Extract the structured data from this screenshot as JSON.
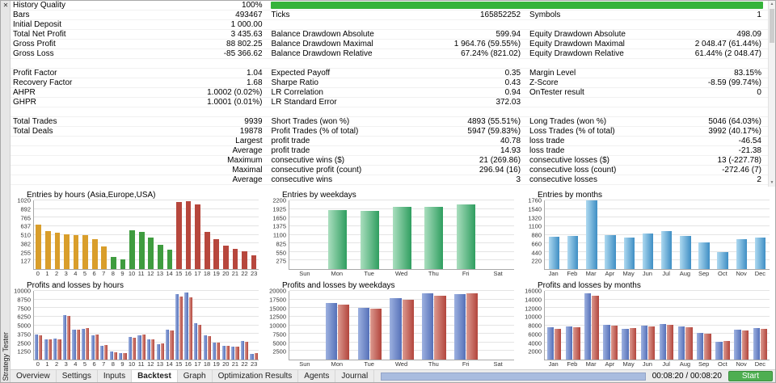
{
  "panel": {
    "name": "Strategy Tester",
    "close_icon": "✕",
    "scrollbar": {
      "up_icon": "▲",
      "down_icon": "▼"
    }
  },
  "colors": {
    "history_bar": "#35b33a",
    "progress": "#a9bcdf",
    "start_button": "#4eae51"
  },
  "stats": {
    "history_quality": {
      "label": "History Quality",
      "value": "100%"
    },
    "rows": [
      {
        "c": [
          {
            "l": "Bars",
            "v": "493467"
          },
          {
            "l": "Ticks",
            "v": "165852252"
          },
          {
            "l": "Symbols",
            "v": "1"
          }
        ]
      },
      {
        "c": [
          {
            "l": "Initial Deposit",
            "v": "1 000.00"
          },
          {
            "l": "",
            "v": ""
          },
          {
            "l": "",
            "v": ""
          }
        ]
      },
      {
        "c": [
          {
            "l": "Total Net Profit",
            "v": "3 435.63"
          },
          {
            "l": "Balance Drawdown Absolute",
            "v": "599.94"
          },
          {
            "l": "Equity Drawdown Absolute",
            "v": "498.09"
          }
        ]
      },
      {
        "c": [
          {
            "l": "Gross Profit",
            "v": "88 802.25"
          },
          {
            "l": "Balance Drawdown Maximal",
            "v": "1 964.76 (59.55%)"
          },
          {
            "l": "Equity Drawdown Maximal",
            "v": "2 048.47 (61.44%)"
          }
        ]
      },
      {
        "c": [
          {
            "l": "Gross Loss",
            "v": "-85 366.62"
          },
          {
            "l": "Balance Drawdown Relative",
            "v": "67.24% (821.02)"
          },
          {
            "l": "Equity Drawdown Relative",
            "v": "61.44% (2 048.47)"
          }
        ]
      },
      {
        "spacer": true
      },
      {
        "c": [
          {
            "l": "Profit Factor",
            "v": "1.04"
          },
          {
            "l": "Expected Payoff",
            "v": "0.35"
          },
          {
            "l": "Margin Level",
            "v": "83.15%"
          }
        ]
      },
      {
        "c": [
          {
            "l": "Recovery Factor",
            "v": "1.68"
          },
          {
            "l": "Sharpe Ratio",
            "v": "0.43"
          },
          {
            "l": "Z-Score",
            "v": "-8.59 (99.74%)"
          }
        ]
      },
      {
        "c": [
          {
            "l": "AHPR",
            "v": "1.0002 (0.02%)"
          },
          {
            "l": "LR Correlation",
            "v": "0.94"
          },
          {
            "l": "OnTester result",
            "v": "0"
          }
        ]
      },
      {
        "c": [
          {
            "l": "GHPR",
            "v": "1.0001 (0.01%)"
          },
          {
            "l": "LR Standard Error",
            "v": "372.03"
          },
          {
            "l": "",
            "v": ""
          }
        ]
      },
      {
        "spacer": true
      },
      {
        "c": [
          {
            "l": "Total Trades",
            "v": "9939"
          },
          {
            "l": "Short Trades (won %)",
            "v": "4893 (55.51%)"
          },
          {
            "l": "Long Trades (won %)",
            "v": "5046 (64.03%)"
          }
        ]
      },
      {
        "c": [
          {
            "l": "Total Deals",
            "v": "19878"
          },
          {
            "l": "Profit Trades (% of total)",
            "v": "5947 (59.83%)"
          },
          {
            "l": "Loss Trades (% of total)",
            "v": "3992 (40.17%)"
          }
        ]
      },
      {
        "c": [
          {
            "l": "",
            "v": "Largest"
          },
          {
            "l": "profit trade",
            "v": "40.78"
          },
          {
            "l": "loss trade",
            "v": "-46.54"
          }
        ]
      },
      {
        "c": [
          {
            "l": "",
            "v": "Average"
          },
          {
            "l": "profit trade",
            "v": "14.93"
          },
          {
            "l": "loss trade",
            "v": "-21.38"
          }
        ]
      },
      {
        "c": [
          {
            "l": "",
            "v": "Maximum"
          },
          {
            "l": "consecutive wins ($)",
            "v": "21 (269.86)"
          },
          {
            "l": "consecutive losses ($)",
            "v": "13 (-227.78)"
          }
        ]
      },
      {
        "c": [
          {
            "l": "",
            "v": "Maximal"
          },
          {
            "l": "consecutive profit (count)",
            "v": "296.94 (16)"
          },
          {
            "l": "consecutive loss (count)",
            "v": "-272.46 (7)"
          }
        ]
      },
      {
        "c": [
          {
            "l": "",
            "v": "Average"
          },
          {
            "l": "consecutive wins",
            "v": "3"
          },
          {
            "l": "consecutive losses",
            "v": "2"
          }
        ]
      }
    ]
  },
  "chart_data": [
    {
      "type": "bar",
      "title": "Entries by hours (Asia,Europe,USA)",
      "categories": [
        "0",
        "1",
        "2",
        "3",
        "4",
        "5",
        "6",
        "7",
        "8",
        "9",
        "10",
        "11",
        "12",
        "13",
        "14",
        "15",
        "16",
        "17",
        "18",
        "19",
        "20",
        "21",
        "22",
        "23"
      ],
      "values": [
        660,
        560,
        545,
        520,
        500,
        510,
        445,
        340,
        185,
        150,
        580,
        550,
        470,
        355,
        290,
        1000,
        1010,
        955,
        550,
        445,
        350,
        300,
        265,
        210
      ],
      "ylim": [
        0,
        1020
      ],
      "yticks": [
        127,
        255,
        382,
        510,
        637,
        765,
        892,
        1020
      ],
      "palette": [
        "#d99e2b",
        "#3f9c3f",
        "#b7473d"
      ],
      "group_bounds": [
        8,
        15
      ]
    },
    {
      "type": "bar",
      "title": "Entries by weekdays",
      "categories": [
        "Sun",
        "Mon",
        "Tue",
        "Wed",
        "Thu",
        "Fri",
        "Sat"
      ],
      "values": [
        0,
        1900,
        1855,
        2000,
        1995,
        2060,
        0
      ],
      "ylim": [
        0,
        2200
      ],
      "yticks": [
        275,
        550,
        825,
        1100,
        1375,
        1650,
        1925,
        2200
      ],
      "bar_gradient": [
        "#aadebe",
        "#2f9e60"
      ]
    },
    {
      "type": "bar",
      "title": "Entries by months",
      "categories": [
        "Jan",
        "Feb",
        "Mar",
        "Apr",
        "May",
        "Jun",
        "Jul",
        "Aug",
        "Sep",
        "Oct",
        "Nov",
        "Dec"
      ],
      "values": [
        820,
        845,
        1760,
        865,
        800,
        915,
        975,
        855,
        680,
        440,
        775,
        800
      ],
      "ylim": [
        0,
        1760
      ],
      "yticks": [
        220,
        440,
        660,
        880,
        1100,
        1320,
        1540,
        1760
      ],
      "bar_gradient": [
        "#aed9f0",
        "#3e8ec4"
      ]
    },
    {
      "type": "bar",
      "title": "Profits and losses by hours",
      "categories": [
        "0",
        "1",
        "2",
        "3",
        "4",
        "5",
        "6",
        "7",
        "8",
        "9",
        "10",
        "11",
        "12",
        "13",
        "14",
        "15",
        "16",
        "17",
        "18",
        "19",
        "20",
        "21",
        "22",
        "23"
      ],
      "series": [
        {
          "name": "profit",
          "values": [
            3700,
            3000,
            3050,
            6500,
            4400,
            4450,
            3500,
            2050,
            1200,
            1000,
            3300,
            3550,
            3000,
            2250,
            4300,
            9500,
            9800,
            5300,
            3500,
            2500,
            2050,
            1850,
            2700,
            850
          ]
        },
        {
          "name": "loss",
          "values": [
            3550,
            2900,
            3000,
            6300,
            4300,
            4550,
            3600,
            2100,
            1100,
            950,
            3200,
            3600,
            2950,
            2300,
            4200,
            9200,
            9100,
            5050,
            3400,
            2450,
            2050,
            1900,
            2600,
            900
          ]
        }
      ],
      "ylim": [
        0,
        10000
      ],
      "yticks": [
        1250,
        2500,
        3750,
        5000,
        6250,
        7500,
        8750,
        10000
      ],
      "series_colors": [
        [
          "#9db1e0",
          "#5570b8"
        ],
        [
          "#dc9a90",
          "#b2453c"
        ]
      ]
    },
    {
      "type": "bar",
      "title": "Profits and losses by weekdays",
      "categories": [
        "Sun",
        "Mon",
        "Tue",
        "Wed",
        "Thu",
        "Fri",
        "Sat"
      ],
      "series": [
        {
          "name": "profit",
          "values": [
            0,
            16500,
            15000,
            18000,
            19300,
            19000,
            0
          ]
        },
        {
          "name": "loss",
          "values": [
            0,
            16000,
            14800,
            17400,
            18600,
            19200,
            0
          ]
        }
      ],
      "ylim": [
        0,
        20000
      ],
      "yticks": [
        2500,
        5000,
        7500,
        10000,
        12500,
        15000,
        17500,
        20000
      ],
      "series_colors": [
        [
          "#9db1e0",
          "#5570b8"
        ],
        [
          "#dc9a90",
          "#b2453c"
        ]
      ]
    },
    {
      "type": "bar",
      "title": "Profits and losses by months",
      "categories": [
        "Jan",
        "Feb",
        "Mar",
        "Apr",
        "May",
        "Jun",
        "Jul",
        "Aug",
        "Sep",
        "Oct",
        "Nov",
        "Dec"
      ],
      "series": [
        {
          "name": "profit",
          "values": [
            7500,
            7800,
            15400,
            8100,
            7100,
            8000,
            8300,
            7800,
            6200,
            4100,
            7000,
            7300
          ]
        },
        {
          "name": "loss",
          "values": [
            7100,
            7500,
            14900,
            7900,
            7300,
            7800,
            8100,
            7600,
            6000,
            4300,
            6800,
            7100
          ]
        }
      ],
      "ylim": [
        0,
        16000
      ],
      "yticks": [
        2000,
        4000,
        6000,
        8000,
        10000,
        12000,
        14000,
        16000
      ],
      "series_colors": [
        [
          "#9db1e0",
          "#5570b8"
        ],
        [
          "#dc9a90",
          "#b2453c"
        ]
      ]
    }
  ],
  "tabbar": {
    "tabs": [
      "Overview",
      "Settings",
      "Inputs",
      "Backtest",
      "Graph",
      "Optimization Results",
      "Agents",
      "Journal"
    ],
    "active_tab": "Backtest",
    "time": "00:08:20 / 00:08:20",
    "start_button": "Start"
  }
}
